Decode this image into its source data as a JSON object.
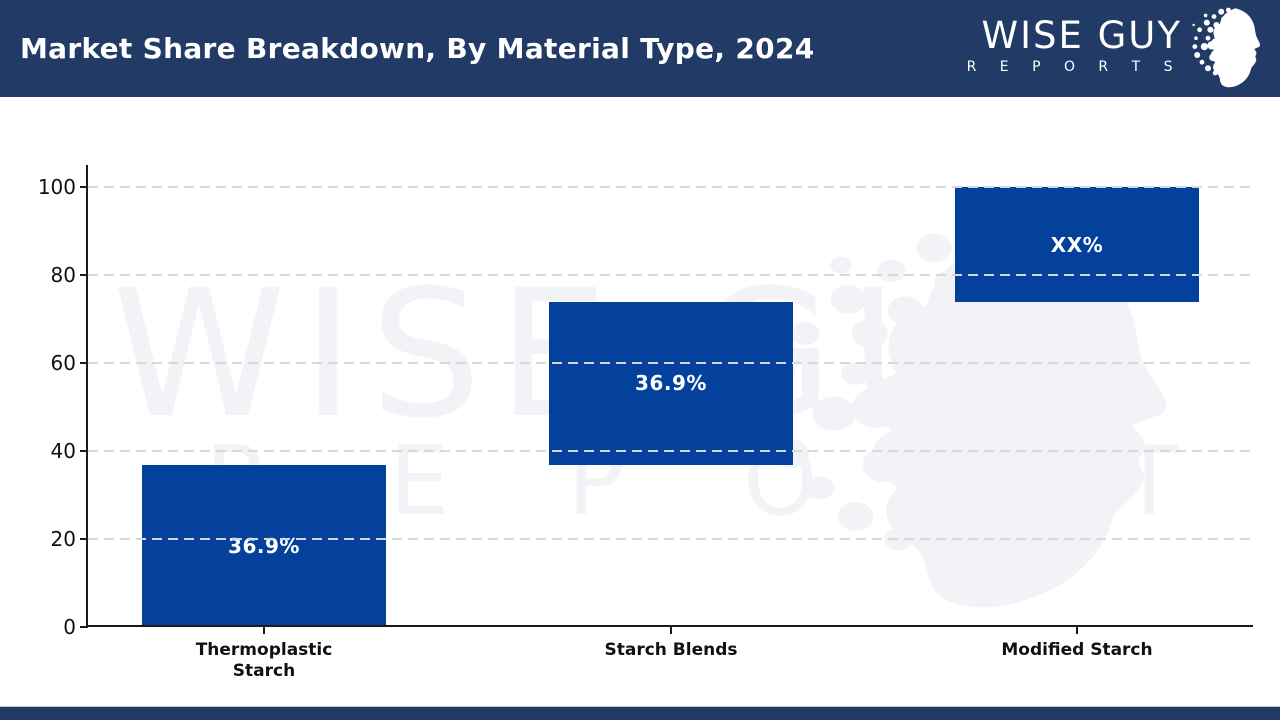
{
  "header": {
    "title": "Market Share Breakdown, By Material Type, 2024",
    "logo": {
      "line1": "WISE GUY",
      "line2": "R E P O R T S",
      "face_icon": "face-profile-dots-icon"
    }
  },
  "watermark": {
    "line1": "WISE GUY",
    "line2": "R E P O R T S",
    "face_icon": "face-profile-dots-icon"
  },
  "chart_data": {
    "type": "bar",
    "subtype": "waterfall",
    "title": "Market Share Breakdown, By Material Type, 2024",
    "categories": [
      "Thermoplastic Starch",
      "Starch Blends",
      "Modified Starch"
    ],
    "bars": [
      {
        "category": "Thermoplastic Starch",
        "start": 0,
        "end": 36.9,
        "label": "36.9%"
      },
      {
        "category": "Starch Blends",
        "start": 36.9,
        "end": 73.8,
        "label": "36.9%"
      },
      {
        "category": "Modified Starch",
        "start": 73.8,
        "end": 100,
        "label": "XX%"
      }
    ],
    "yticks": [
      0,
      20,
      40,
      60,
      80,
      100
    ],
    "ylim": [
      0,
      100
    ],
    "xlabel": "",
    "ylabel": "",
    "grid": "dashed-horizontal",
    "legend": "none"
  },
  "colors": {
    "header_bg": "#213A66",
    "bar": "#04419C",
    "grid": "#D6D8DC",
    "axis": "#1A1A1A",
    "watermark": "#F2F3F6",
    "label_on_bar": "#FFFFFF"
  }
}
